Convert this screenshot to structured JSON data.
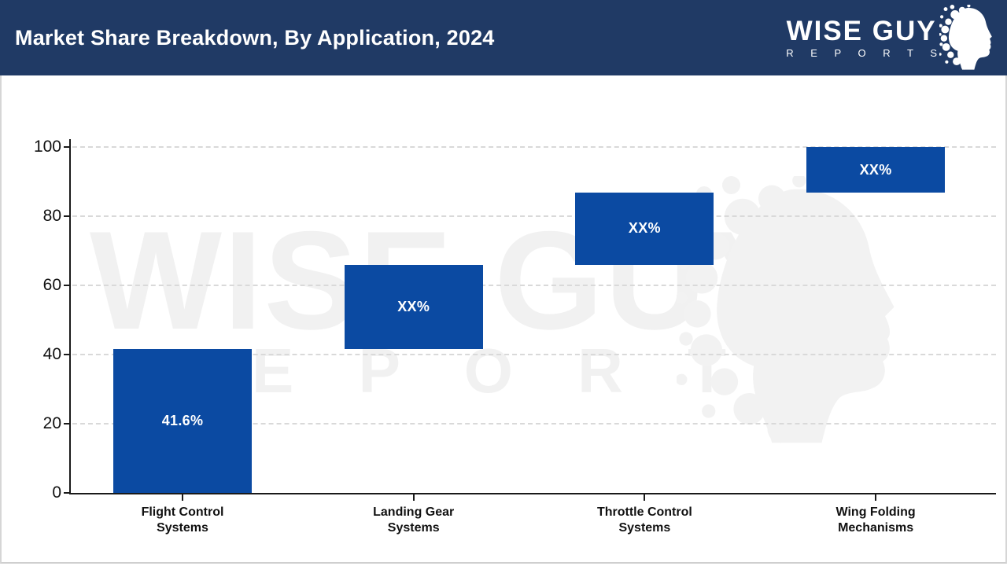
{
  "header": {
    "title": "Market Share Breakdown, By Application, 2024",
    "logo": {
      "line1": "WISE GUY",
      "line2": "R E P O R T S"
    }
  },
  "watermark": {
    "line1": "WISE GUY",
    "line2": "R E P O R T S"
  },
  "colors": {
    "header_bg": "#203a65",
    "bar": "#0b4aa2",
    "bar_label": "#ffffff",
    "gridline": "#d9d9d9",
    "axis": "#1a1a1a",
    "watermark": "#f1f1f1"
  },
  "chart_data": {
    "type": "bar",
    "subtype": "floating-waterfall",
    "title": "Market Share Breakdown, By Application, 2024",
    "categories": [
      "Flight Control Systems",
      "Landing Gear Systems",
      "Throttle Control Systems",
      "Wing Folding Mechanisms"
    ],
    "segments": [
      {
        "category_lines": [
          "Flight Control",
          "Systems"
        ],
        "start": 0,
        "end": 41.6,
        "label": "41.6%"
      },
      {
        "category_lines": [
          "Landing Gear",
          "Systems"
        ],
        "start": 41.6,
        "end": 66,
        "label": "XX%"
      },
      {
        "category_lines": [
          "Throttle Control",
          "Systems"
        ],
        "start": 66,
        "end": 86.8,
        "label": "XX%"
      },
      {
        "category_lines": [
          "Wing Folding",
          "Mechanisms"
        ],
        "start": 86.8,
        "end": 100,
        "label": "XX%"
      }
    ],
    "xlabel": "",
    "ylabel": "",
    "yticks": [
      0,
      20,
      40,
      60,
      80,
      100
    ],
    "ylim": [
      0,
      105
    ],
    "grid": "horizontal-dashed",
    "legend": "none",
    "bar_color": "#0b4aa2",
    "bar_label_color": "#ffffff"
  }
}
